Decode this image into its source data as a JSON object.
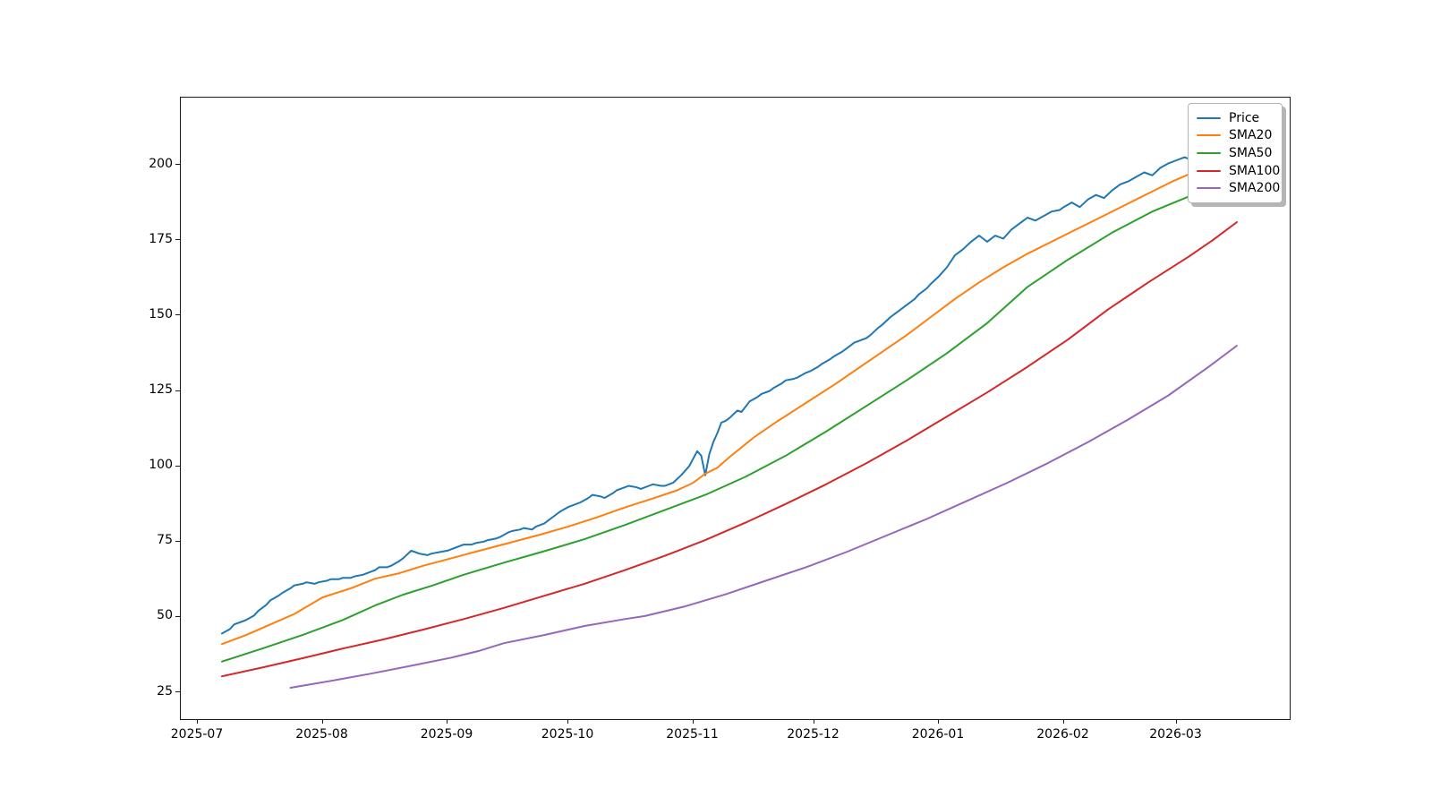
{
  "figure": {
    "background": "#ffffff"
  },
  "legend": {
    "position": "upper-right",
    "entries": [
      {
        "label": "Price",
        "color": "#1f77b4"
      },
      {
        "label": "SMA20",
        "color": "#ff7f0e"
      },
      {
        "label": "SMA50",
        "color": "#2ca02c"
      },
      {
        "label": "SMA100",
        "color": "#d62728"
      },
      {
        "label": "SMA200",
        "color": "#9467bd"
      }
    ]
  },
  "chart_data": {
    "type": "line",
    "title": "",
    "xlabel": "",
    "ylabel": "",
    "grid": false,
    "x_unit": "days since 2025-07-01",
    "xlim": [
      -4.22,
      271.11
    ],
    "ylim": [
      16.1,
      222.3
    ],
    "y_ticks": [
      25,
      50,
      75,
      100,
      125,
      150,
      175,
      200
    ],
    "x_ticks": [
      {
        "label": "2025-07",
        "day": 0
      },
      {
        "label": "2025-08",
        "day": 31
      },
      {
        "label": "2025-09",
        "day": 62
      },
      {
        "label": "2025-10",
        "day": 92
      },
      {
        "label": "2025-11",
        "day": 123
      },
      {
        "label": "2025-12",
        "day": 153
      },
      {
        "label": "2026-01",
        "day": 184
      },
      {
        "label": "2026-02",
        "day": 215
      },
      {
        "label": "2026-03",
        "day": 243
      }
    ],
    "series": [
      {
        "name": "Price",
        "color": "#1f77b4",
        "points": [
          [
            6,
            44.5
          ],
          [
            8,
            46
          ],
          [
            9,
            47.5
          ],
          [
            11,
            48.5
          ],
          [
            12,
            49
          ],
          [
            14,
            50.5
          ],
          [
            15,
            52
          ],
          [
            17,
            54
          ],
          [
            18,
            55.5
          ],
          [
            20,
            57
          ],
          [
            21,
            58
          ],
          [
            23,
            59.5
          ],
          [
            24,
            60.5
          ],
          [
            26,
            61
          ],
          [
            27,
            61.5
          ],
          [
            29,
            61
          ],
          [
            30,
            61.5
          ],
          [
            32,
            62
          ],
          [
            33,
            62.5
          ],
          [
            35,
            62.5
          ],
          [
            36,
            63
          ],
          [
            38,
            63
          ],
          [
            39,
            63.5
          ],
          [
            41,
            64
          ],
          [
            42,
            64.5
          ],
          [
            44,
            65.5
          ],
          [
            45,
            66.5
          ],
          [
            47,
            66.5
          ],
          [
            48,
            67
          ],
          [
            50,
            68.5
          ],
          [
            51,
            69.5
          ],
          [
            53,
            72
          ],
          [
            54,
            71.5
          ],
          [
            55,
            71
          ],
          [
            57,
            70.5
          ],
          [
            58,
            71
          ],
          [
            60,
            71.5
          ],
          [
            62,
            72
          ],
          [
            63,
            72.5
          ],
          [
            65,
            73.5
          ],
          [
            66,
            74
          ],
          [
            68,
            74
          ],
          [
            69,
            74.5
          ],
          [
            71,
            75
          ],
          [
            72,
            75.5
          ],
          [
            74,
            76
          ],
          [
            75,
            76.5
          ],
          [
            77,
            78
          ],
          [
            78,
            78.5
          ],
          [
            80,
            79
          ],
          [
            81,
            79.5
          ],
          [
            83,
            79
          ],
          [
            84,
            80
          ],
          [
            86,
            81
          ],
          [
            87,
            82
          ],
          [
            89,
            84
          ],
          [
            90,
            85
          ],
          [
            92,
            86.5
          ],
          [
            93,
            87
          ],
          [
            95,
            88
          ],
          [
            97,
            89.5
          ],
          [
            98,
            90.5
          ],
          [
            100,
            90
          ],
          [
            101,
            89.5
          ],
          [
            103,
            91
          ],
          [
            104,
            92
          ],
          [
            106,
            93
          ],
          [
            107,
            93.5
          ],
          [
            109,
            93
          ],
          [
            110,
            92.5
          ],
          [
            112,
            93.5
          ],
          [
            113,
            94
          ],
          [
            115,
            93.5
          ],
          [
            116,
            93.5
          ],
          [
            118,
            94.5
          ],
          [
            120,
            97
          ],
          [
            122,
            100
          ],
          [
            123,
            102.5
          ],
          [
            124,
            105
          ],
          [
            125,
            103.5
          ],
          [
            126,
            97
          ],
          [
            127,
            104
          ],
          [
            128,
            108
          ],
          [
            129,
            111
          ],
          [
            130,
            114.5
          ],
          [
            131,
            115
          ],
          [
            132,
            116
          ],
          [
            134,
            118.5
          ],
          [
            135,
            118
          ],
          [
            137,
            121.5
          ],
          [
            139,
            123
          ],
          [
            140,
            124
          ],
          [
            142,
            125
          ],
          [
            143,
            126
          ],
          [
            145,
            127.5
          ],
          [
            146,
            128.5
          ],
          [
            148,
            129
          ],
          [
            149,
            129.5
          ],
          [
            151,
            131
          ],
          [
            152,
            131.5
          ],
          [
            154,
            133
          ],
          [
            155,
            134
          ],
          [
            157,
            135.5
          ],
          [
            158,
            136.5
          ],
          [
            160,
            138
          ],
          [
            161,
            139
          ],
          [
            163,
            141
          ],
          [
            164,
            141.5
          ],
          [
            166,
            142.5
          ],
          [
            167,
            143.5
          ],
          [
            169,
            146
          ],
          [
            170,
            147
          ],
          [
            172,
            149.5
          ],
          [
            173,
            150.5
          ],
          [
            175,
            152.5
          ],
          [
            176,
            153.5
          ],
          [
            178,
            155.5
          ],
          [
            179,
            157
          ],
          [
            181,
            159
          ],
          [
            182,
            160.5
          ],
          [
            184,
            163
          ],
          [
            186,
            166
          ],
          [
            188,
            170
          ],
          [
            189,
            171
          ],
          [
            190,
            172
          ],
          [
            192,
            174.5
          ],
          [
            194,
            176.5
          ],
          [
            195,
            175.5
          ],
          [
            196,
            174.5
          ],
          [
            198,
            176.5
          ],
          [
            200,
            175.5
          ],
          [
            201,
            177
          ],
          [
            202,
            178.5
          ],
          [
            204,
            180.5
          ],
          [
            206,
            182.5
          ],
          [
            208,
            181.5
          ],
          [
            210,
            183
          ],
          [
            212,
            184.5
          ],
          [
            214,
            185
          ],
          [
            215,
            186
          ],
          [
            217,
            187.5
          ],
          [
            219,
            186
          ],
          [
            221,
            188.5
          ],
          [
            223,
            190
          ],
          [
            225,
            189
          ],
          [
            227,
            191.5
          ],
          [
            229,
            193.5
          ],
          [
            231,
            194.5
          ],
          [
            233,
            196
          ],
          [
            235,
            197.5
          ],
          [
            237,
            196.5
          ],
          [
            239,
            199
          ],
          [
            241,
            200.5
          ],
          [
            243,
            201.5
          ],
          [
            245,
            202.5
          ],
          [
            247,
            201.5
          ],
          [
            249,
            203.5
          ],
          [
            251,
            205
          ],
          [
            253,
            204
          ],
          [
            255,
            205.5
          ],
          [
            257,
            206.5
          ],
          [
            258,
            206.5
          ]
        ]
      },
      {
        "name": "SMA20",
        "color": "#ff7f0e",
        "points": [
          [
            6,
            41
          ],
          [
            12,
            44
          ],
          [
            18,
            47.5
          ],
          [
            24,
            51
          ],
          [
            31,
            56.5
          ],
          [
            38,
            59.5
          ],
          [
            44,
            62.7
          ],
          [
            50,
            64.5
          ],
          [
            56,
            67
          ],
          [
            63,
            69.5
          ],
          [
            70,
            72
          ],
          [
            78,
            74.8
          ],
          [
            85,
            77.3
          ],
          [
            92,
            80
          ],
          [
            99,
            83
          ],
          [
            106,
            86.3
          ],
          [
            113,
            89.3
          ],
          [
            119,
            92
          ],
          [
            123,
            94.5
          ],
          [
            126,
            97.5
          ],
          [
            129,
            99.5
          ],
          [
            132,
            103
          ],
          [
            138,
            109.5
          ],
          [
            144,
            115
          ],
          [
            151,
            121
          ],
          [
            158,
            127
          ],
          [
            164,
            132.5
          ],
          [
            170,
            138
          ],
          [
            176,
            143.5
          ],
          [
            182,
            149.5
          ],
          [
            188,
            155.5
          ],
          [
            194,
            161
          ],
          [
            200,
            166
          ],
          [
            206,
            170.5
          ],
          [
            212,
            174.5
          ],
          [
            218,
            178.5
          ],
          [
            224,
            182.5
          ],
          [
            230,
            186.5
          ],
          [
            236,
            190.5
          ],
          [
            242,
            194.5
          ],
          [
            248,
            198
          ],
          [
            253,
            200.5
          ],
          [
            258,
            203
          ]
        ]
      },
      {
        "name": "SMA50",
        "color": "#2ca02c",
        "points": [
          [
            6,
            35.2
          ],
          [
            16,
            39.5
          ],
          [
            26,
            44
          ],
          [
            36,
            49
          ],
          [
            44,
            53.8
          ],
          [
            51,
            57.4
          ],
          [
            58,
            60.3
          ],
          [
            66,
            64
          ],
          [
            76,
            68
          ],
          [
            86,
            71.8
          ],
          [
            96,
            75.8
          ],
          [
            106,
            80.5
          ],
          [
            116,
            85.5
          ],
          [
            126,
            90.5
          ],
          [
            136,
            96.5
          ],
          [
            146,
            103.5
          ],
          [
            156,
            111.5
          ],
          [
            166,
            120
          ],
          [
            176,
            128.5
          ],
          [
            186,
            137.5
          ],
          [
            196,
            147.5
          ],
          [
            206,
            159.5
          ],
          [
            216,
            168.5
          ],
          [
            227,
            177.5
          ],
          [
            237,
            184.5
          ],
          [
            247,
            190
          ],
          [
            258,
            195.5
          ]
        ]
      },
      {
        "name": "SMA100",
        "color": "#d62728",
        "points": [
          [
            6,
            30.3
          ],
          [
            16,
            33.2
          ],
          [
            26,
            36.3
          ],
          [
            36,
            39.5
          ],
          [
            46,
            42.5
          ],
          [
            56,
            45.8
          ],
          [
            66,
            49.3
          ],
          [
            76,
            53
          ],
          [
            86,
            57
          ],
          [
            96,
            61
          ],
          [
            106,
            65.5
          ],
          [
            116,
            70.3
          ],
          [
            126,
            75.5
          ],
          [
            136,
            81.3
          ],
          [
            146,
            87.5
          ],
          [
            156,
            94
          ],
          [
            166,
            101
          ],
          [
            176,
            108.5
          ],
          [
            186,
            116.5
          ],
          [
            196,
            124.5
          ],
          [
            206,
            133
          ],
          [
            216,
            142
          ],
          [
            226,
            152
          ],
          [
            236,
            161
          ],
          [
            246,
            169.5
          ],
          [
            252,
            175
          ],
          [
            258,
            181
          ]
        ]
      },
      {
        "name": "SMA200",
        "color": "#9467bd",
        "points": [
          [
            23,
            26.5
          ],
          [
            33,
            28.8
          ],
          [
            43,
            31.2
          ],
          [
            53,
            33.8
          ],
          [
            63,
            36.5
          ],
          [
            70,
            38.8
          ],
          [
            76,
            41.3
          ],
          [
            86,
            44
          ],
          [
            96,
            47
          ],
          [
            106,
            49.3
          ],
          [
            111,
            50.3
          ],
          [
            121,
            53.5
          ],
          [
            131,
            57.5
          ],
          [
            141,
            62
          ],
          [
            151,
            66.5
          ],
          [
            161,
            71.5
          ],
          [
            171,
            77
          ],
          [
            181,
            82.5
          ],
          [
            191,
            88.5
          ],
          [
            201,
            94.5
          ],
          [
            211,
            101
          ],
          [
            221,
            108
          ],
          [
            231,
            115.5
          ],
          [
            241,
            123.5
          ],
          [
            251,
            133
          ],
          [
            258,
            140
          ]
        ]
      }
    ]
  }
}
